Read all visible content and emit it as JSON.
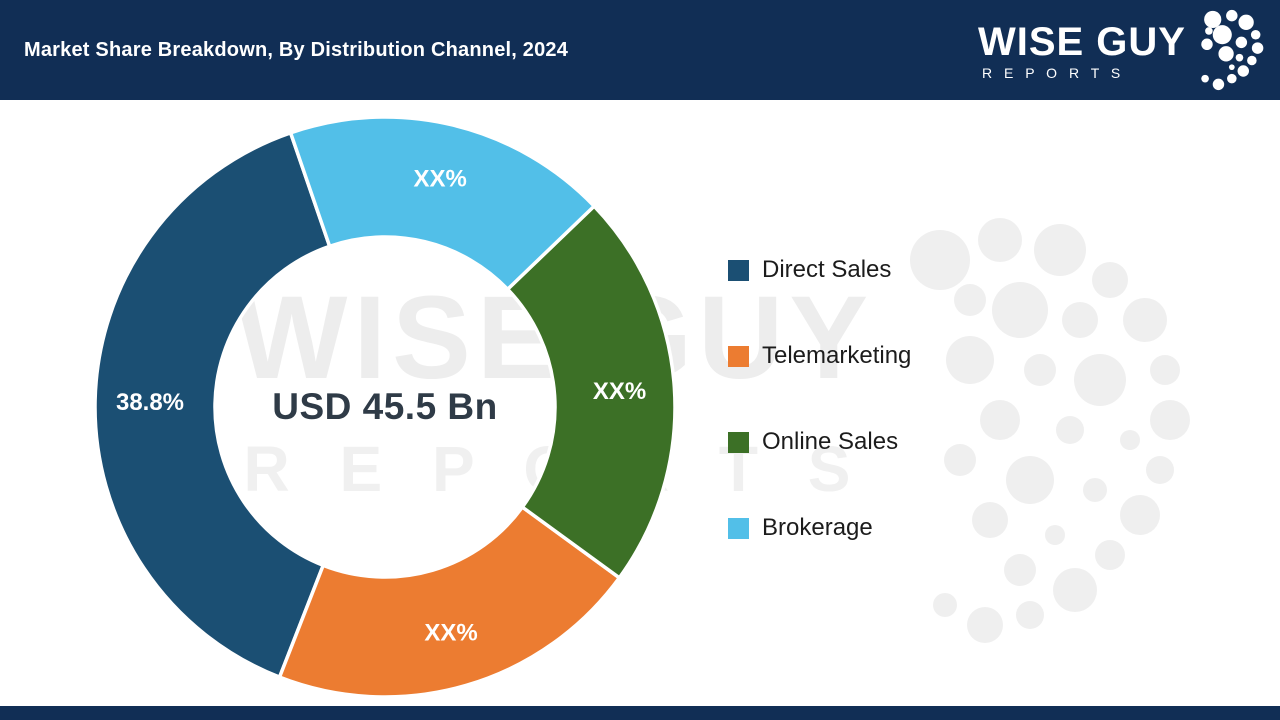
{
  "header": {
    "title": "Market Share Breakdown, By Distribution Channel, 2024",
    "brand": {
      "line1": "WISE GUY",
      "line2": "R E P O R T S"
    }
  },
  "watermark": {
    "line1": "WISE GUY",
    "line2": "R E P O R T S"
  },
  "chart_data": {
    "type": "donut",
    "title": "Market Share Breakdown, By Distribution Channel, 2024",
    "center_label": "USD 45.5 Bn",
    "legend_position": "right",
    "segments": [
      {
        "name": "Direct Sales",
        "label": "38.8%",
        "value": 38.8,
        "color": "#1b4f73"
      },
      {
        "name": "Telemarketing",
        "label": "XX%",
        "value": 20.9,
        "color": "#ec7c31"
      },
      {
        "name": "Online Sales",
        "label": "XX%",
        "value": 22.2,
        "color": "#3c7026"
      },
      {
        "name": "Brokerage",
        "label": "XX%",
        "value": 18.1,
        "color": "#52bfe8"
      }
    ]
  },
  "colors": {
    "header_bg": "#112e55",
    "footer_bg": "#112e55",
    "canvas_bg": "#ffffff",
    "center_label_text": "#2f3b47",
    "segment_label_text": "#ffffff",
    "legend_text": "#1c1c1c",
    "watermark_text": "#ededed"
  }
}
